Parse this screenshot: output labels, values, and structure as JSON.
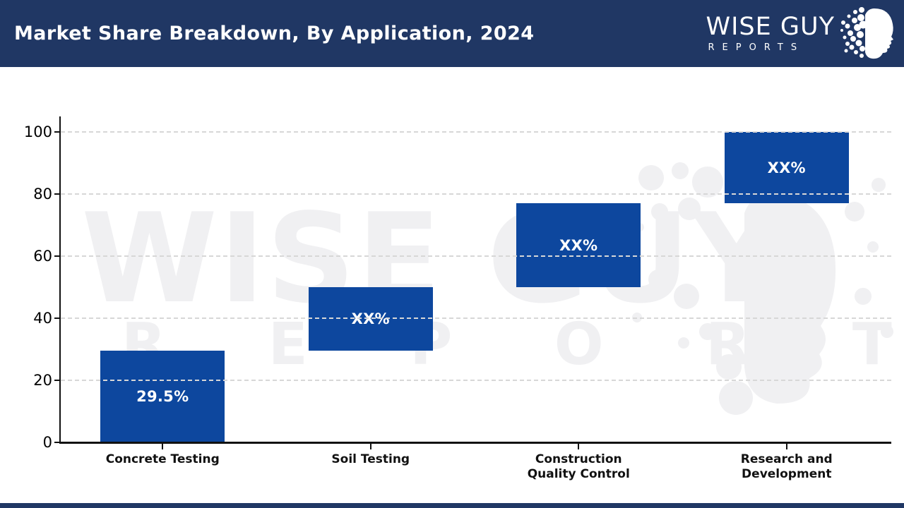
{
  "header": {
    "title": "Market Share Breakdown, By Application, 2024",
    "bg_color": "#203764",
    "logo": {
      "line1": "WISE GUY",
      "line2": "REPORTS"
    }
  },
  "watermark": {
    "line1": "WISE GUY",
    "line2": "R E P O R T S",
    "color": "#f0f0f2"
  },
  "footer": {
    "bg_color": "#203764"
  },
  "chart_data": {
    "type": "bar",
    "subtype": "waterfall",
    "title": "Market Share Breakdown, By Application, 2024",
    "categories": [
      "Concrete Testing",
      "Soil Testing",
      "Construction Quality Control",
      "Research and Development"
    ],
    "segments": [
      {
        "category_lines": [
          "Concrete Testing"
        ],
        "start": 0,
        "end": 29.5,
        "value_label": "29.5%"
      },
      {
        "category_lines": [
          "Soil Testing"
        ],
        "start": 29.5,
        "end": 50,
        "value_label": "XX%"
      },
      {
        "category_lines": [
          "Construction",
          "Quality Control"
        ],
        "start": 50,
        "end": 77,
        "value_label": "XX%"
      },
      {
        "category_lines": [
          "Research and",
          "Development"
        ],
        "start": 77,
        "end": 100,
        "value_label": "XX%"
      }
    ],
    "y_ticks": [
      0,
      20,
      40,
      60,
      80,
      100
    ],
    "ylim": [
      0,
      105
    ],
    "xlabel": "",
    "ylabel": "",
    "legend": "none",
    "grid": "horizontal-dashed",
    "bar_color": "#0d479e",
    "grid_color": "#d7d7d7",
    "axis_color": "#111111",
    "value_label_color": "#ffffff"
  }
}
